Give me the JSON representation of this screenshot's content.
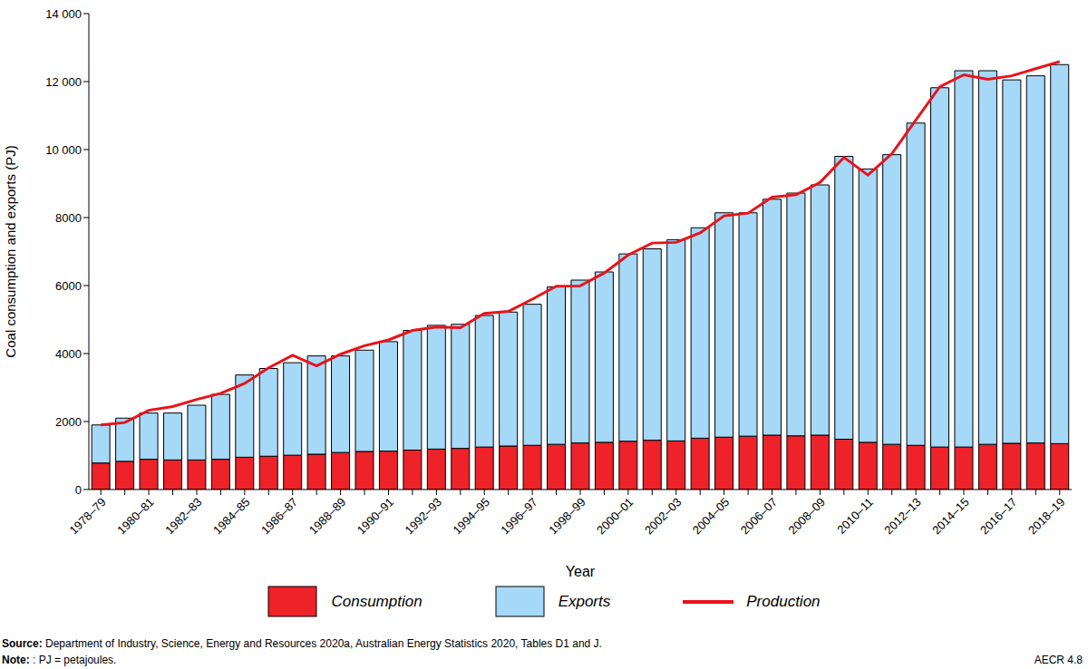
{
  "chart_data": {
    "type": "bar",
    "stacked": true,
    "grid": false,
    "legend": "bottom",
    "y_label": "Coal consumption and exports (PJ)",
    "x_label": "Year",
    "source": "Source: Department of Industry, Science, Energy and Resources 2020a, Australian Energy Statistics 2020, Tables D1 and J.",
    "note": "Note: :  PJ = petajoules.",
    "figure_label": "AECR 4.8",
    "categories": [
      "1978–79",
      null,
      "1980–81",
      null,
      "1982–83",
      null,
      "1984–85",
      null,
      "1986–87",
      null,
      "1988–89",
      null,
      "1990–91",
      null,
      "1992–93",
      null,
      "1994–95",
      null,
      "1996–97",
      null,
      "1998–99",
      null,
      "2000–01",
      null,
      "2002–03",
      null,
      "2004–05",
      null,
      "2006–07",
      null,
      "2008–09",
      null,
      "2010–11",
      null,
      "2012–13",
      null,
      "2014–15",
      null,
      "2016–17",
      null,
      "2018–19"
    ],
    "ylim": [
      0,
      14000
    ],
    "yticks": [
      0,
      2000,
      4000,
      6000,
      8000,
      {
        "value": 10000,
        "label": "10 000"
      },
      {
        "value": 12000,
        "label": "12 000"
      },
      {
        "value": 14000,
        "label": "14 000"
      }
    ],
    "series": [
      {
        "name": "Consumption",
        "type": "bar",
        "color": "#ee2229",
        "values": [
          780,
          830,
          890,
          870,
          870,
          890,
          950,
          980,
          1010,
          1040,
          1090,
          1120,
          1130,
          1160,
          1190,
          1210,
          1250,
          1280,
          1300,
          1330,
          1370,
          1390,
          1420,
          1450,
          1430,
          1510,
          1540,
          1570,
          1600,
          1580,
          1600,
          1480,
          1390,
          1330,
          1300,
          1250,
          1250,
          1330,
          1360,
          1370,
          1350
        ]
      },
      {
        "name": "Exports",
        "type": "bar",
        "color": "#a6d8f8",
        "values": [
          1120,
          1270,
          1360,
          1380,
          1610,
          1910,
          2420,
          2580,
          2720,
          2890,
          2840,
          2980,
          3220,
          3520,
          3640,
          3650,
          3870,
          3940,
          4150,
          4630,
          4790,
          5010,
          5510,
          5630,
          5920,
          6190,
          6600,
          6570,
          6940,
          7140,
          7360,
          8320,
          8040,
          8520,
          9480,
          10570,
          11070,
          10990,
          10690,
          10800,
          11150
        ]
      },
      {
        "name": "Production",
        "type": "line",
        "color": "#e8131b",
        "values": [
          1900,
          1970,
          2330,
          2440,
          2650,
          2830,
          3120,
          3580,
          3950,
          3640,
          3980,
          4230,
          4400,
          4680,
          4780,
          4760,
          5180,
          5240,
          5600,
          5980,
          5990,
          6370,
          6900,
          7250,
          7270,
          7550,
          8050,
          8130,
          8600,
          8670,
          9030,
          9770,
          9250,
          9880,
          10870,
          11850,
          12200,
          12070,
          12170,
          12380,
          12590
        ]
      }
    ]
  }
}
